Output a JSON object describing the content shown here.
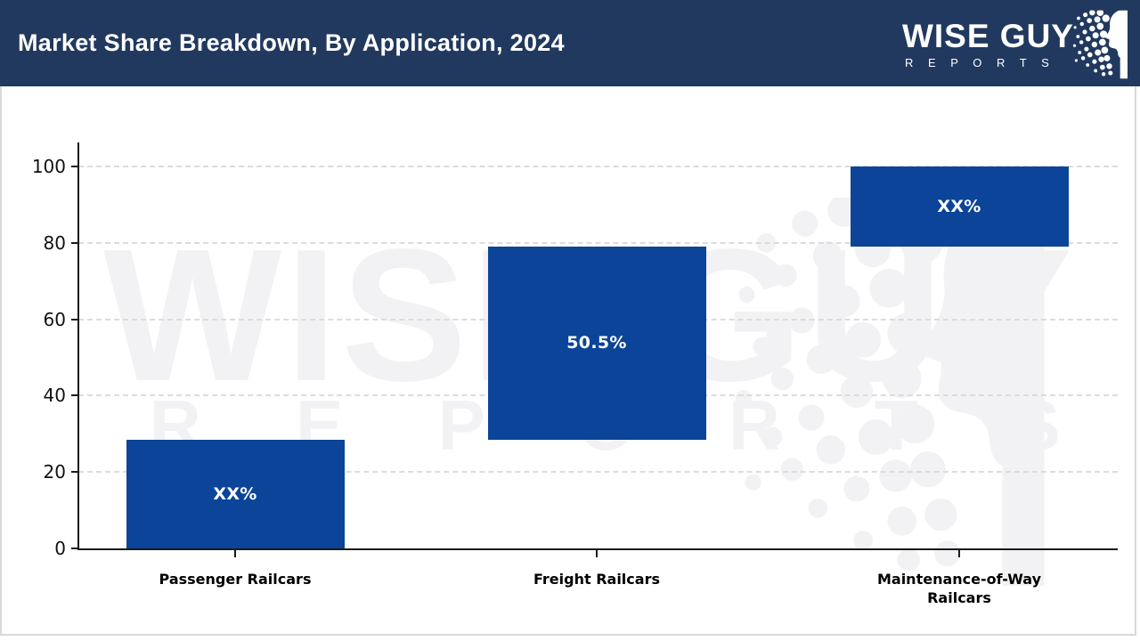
{
  "header": {
    "title": "Market Share Breakdown, By Application, 2024",
    "brand": {
      "name_line": "WISE GUY",
      "reports_spaced": "R E P O R T S"
    }
  },
  "watermark": {
    "name_line": "WISE GUY",
    "reports_spaced": "R E P O R T S"
  },
  "colors": {
    "header_bg": "#21395E",
    "bar": "#0B4498",
    "bar_label": "#FFFFFF",
    "grid": "#DCDCDC",
    "axis": "#1A1A1A",
    "watermark": "#F2F2F4",
    "frame_border": "#D9D9D9"
  },
  "chart_data": {
    "type": "bar",
    "subtype": "waterfall",
    "title": "Market Share Breakdown, By Application, 2024",
    "categories": [
      "Passenger Railcars",
      "Freight Railcars",
      "Maintenance-of-Way Railcars"
    ],
    "segments": [
      {
        "category": "Passenger Railcars",
        "start": 0,
        "end": 28.5,
        "label": "XX%"
      },
      {
        "category": "Freight Railcars",
        "start": 28.5,
        "end": 79,
        "label": "50.5%"
      },
      {
        "category": "Maintenance-of-Way Railcars",
        "start": 79,
        "end": 100,
        "label": "XX%"
      }
    ],
    "ylim": [
      0,
      106
    ],
    "yticks": [
      0,
      20,
      40,
      60,
      80,
      100
    ],
    "xlabel": "",
    "ylabel": "",
    "grid": "dashed-horizontal",
    "legend": "none"
  }
}
